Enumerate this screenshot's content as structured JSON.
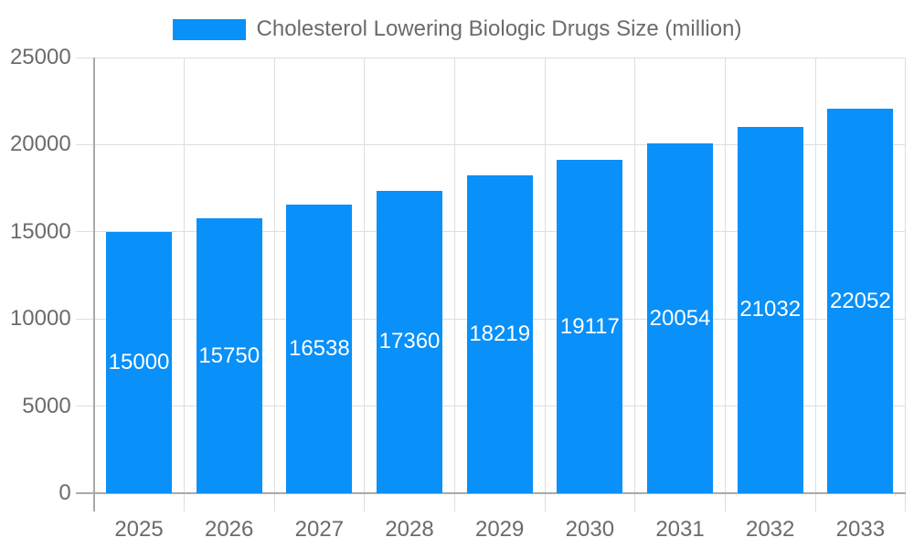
{
  "legend": {
    "position": "top",
    "label": "Cholesterol Lowering Biologic Drugs Size (million)"
  },
  "chart_data": {
    "type": "bar",
    "title": "Cholesterol Lowering Biologic Drugs Size (million)",
    "categories": [
      "2025",
      "2026",
      "2027",
      "2028",
      "2029",
      "2030",
      "2031",
      "2032",
      "2033"
    ],
    "values": [
      15000,
      15750,
      16538,
      17360,
      18219,
      19117,
      20054,
      21032,
      22052
    ],
    "value_labels": [
      "15000",
      "15750",
      "16538",
      "17360",
      "18219",
      "19117",
      "20054",
      "21032",
      "22052"
    ],
    "xlabel": "",
    "ylabel": "",
    "ylim": [
      0,
      25000
    ],
    "yticks": [
      0,
      5000,
      10000,
      15000,
      20000,
      25000
    ],
    "ytick_labels": [
      "0",
      "5000",
      "10000",
      "15000",
      "20000",
      "25000"
    ],
    "grid": "on",
    "legend_position": "top",
    "colors": {
      "bar": "#0990f9",
      "value_label": "#ffffff",
      "axis_text": "#6b6b6b",
      "grid_light": "#dedede",
      "axis_dark": "#a9a9a9",
      "background": "#ffffff"
    }
  }
}
